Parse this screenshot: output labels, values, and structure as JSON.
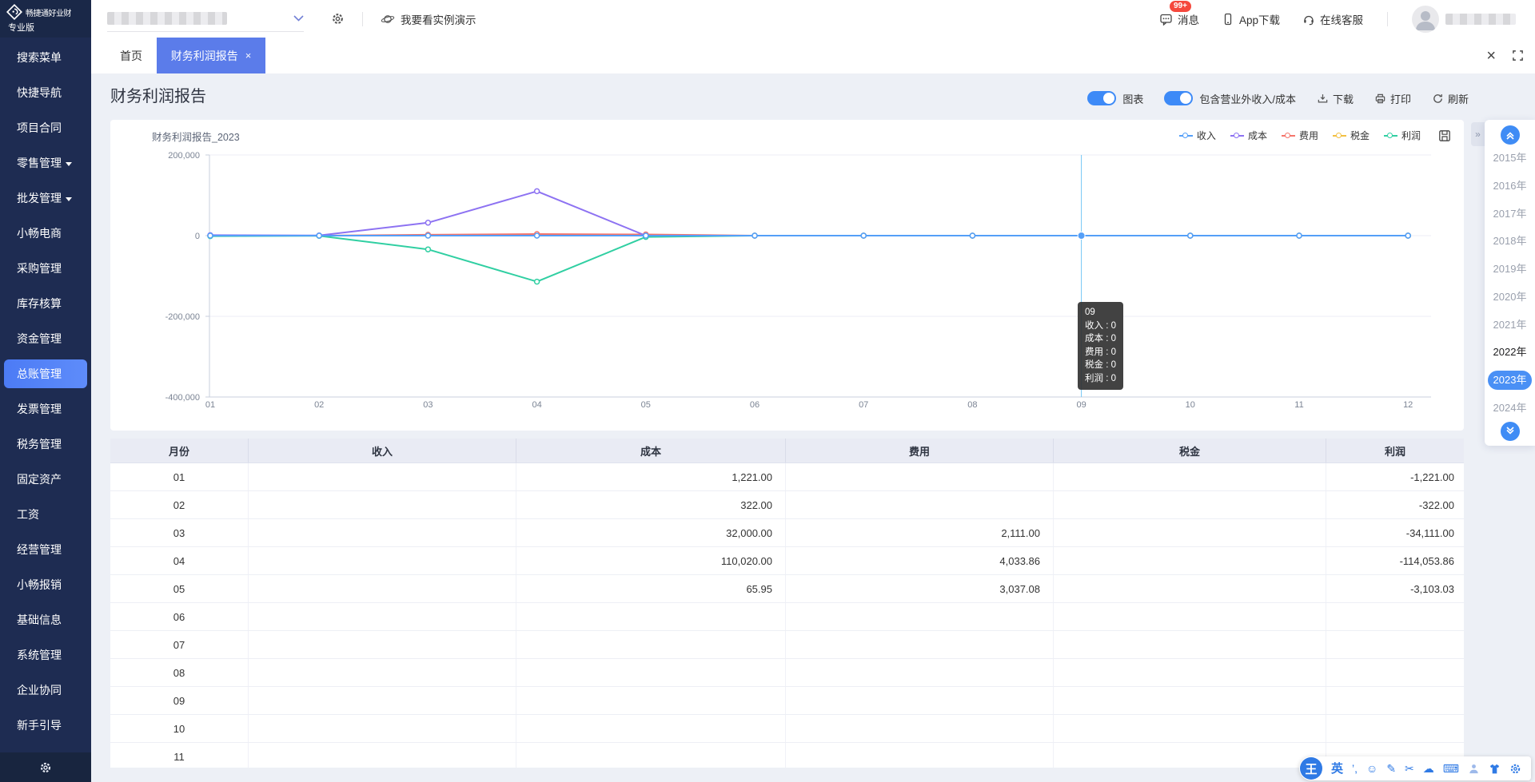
{
  "brand": {
    "name": "畅捷通好业财",
    "edition": "专业版"
  },
  "sidebar": {
    "items": [
      {
        "label": "搜索菜单"
      },
      {
        "label": "快捷导航"
      },
      {
        "label": "项目合同"
      },
      {
        "label": "零售管理",
        "caret": true
      },
      {
        "label": "批发管理",
        "caret": true
      },
      {
        "label": "小畅电商"
      },
      {
        "label": "采购管理"
      },
      {
        "label": "库存核算"
      },
      {
        "label": "资金管理"
      },
      {
        "label": "总账管理",
        "active": true
      },
      {
        "label": "发票管理"
      },
      {
        "label": "税务管理"
      },
      {
        "label": "固定资产"
      },
      {
        "label": "工资"
      },
      {
        "label": "经营管理"
      },
      {
        "label": "小畅报销"
      },
      {
        "label": "基础信息"
      },
      {
        "label": "系统管理"
      },
      {
        "label": "企业协同"
      },
      {
        "label": "新手引导"
      }
    ]
  },
  "topbar": {
    "demo_text": "我要看实例演示",
    "messages_label": "消息",
    "badge": "99+",
    "app_download": "App下载",
    "support": "在线客服"
  },
  "tabs": {
    "home": "首页",
    "active": "财务利润报告"
  },
  "glyphs": {
    "close": "×",
    "window_close": "×",
    "collapse": "»"
  },
  "page": {
    "title": "财务利润报告",
    "toggles": [
      {
        "label": "图表",
        "on": true
      },
      {
        "label": "包含营业外收入/成本",
        "on": true
      }
    ],
    "actions": [
      "下载",
      "打印",
      "刷新"
    ]
  },
  "chart_data": {
    "type": "line",
    "title": "财务利润报告_2023",
    "categories": [
      "01",
      "02",
      "03",
      "04",
      "05",
      "06",
      "07",
      "08",
      "09",
      "10",
      "11",
      "12"
    ],
    "series": [
      {
        "name": "收入",
        "color": "#549ff8",
        "values": [
          0,
          0,
          0,
          0,
          0,
          0,
          0,
          0,
          0,
          0,
          0,
          0
        ]
      },
      {
        "name": "成本",
        "color": "#8d72f2",
        "values": [
          1221,
          322,
          32000,
          110020,
          65.95,
          0,
          0,
          0,
          0,
          0,
          0,
          0
        ]
      },
      {
        "name": "费用",
        "color": "#f5756c",
        "values": [
          0,
          0,
          2111,
          4033.86,
          3037.08,
          0,
          0,
          0,
          0,
          0,
          0,
          0
        ]
      },
      {
        "name": "税金",
        "color": "#f2c043",
        "values": [
          0,
          0,
          0,
          0,
          0,
          0,
          0,
          0,
          0,
          0,
          0,
          0
        ]
      },
      {
        "name": "利润",
        "color": "#30cfa2",
        "values": [
          -1221,
          -322,
          -34111,
          -114053.86,
          -3103.03,
          0,
          0,
          0,
          0,
          0,
          0,
          0
        ]
      }
    ],
    "ylim": [
      -400000,
      200000
    ],
    "yticks": [
      200000,
      0,
      -200000,
      -400000
    ],
    "grid": true,
    "legend_position": "top-right",
    "highlight": {
      "series_index": 0,
      "point_index": 8
    },
    "crosshair_index": 8
  },
  "tooltip": {
    "title": "09",
    "separator": " : ",
    "rows": [
      {
        "name": "收入",
        "value": "0"
      },
      {
        "name": "成本",
        "value": "0"
      },
      {
        "name": "费用",
        "value": "0"
      },
      {
        "name": "税金",
        "value": "0"
      },
      {
        "name": "利润",
        "value": "0"
      }
    ]
  },
  "table": {
    "headers": [
      "月份",
      "收入",
      "成本",
      "费用",
      "税金",
      "利润"
    ],
    "rows": [
      [
        "01",
        "",
        "1,221.00",
        "",
        "",
        "-1,221.00"
      ],
      [
        "02",
        "",
        "322.00",
        "",
        "",
        "-322.00"
      ],
      [
        "03",
        "",
        "32,000.00",
        "2,111.00",
        "",
        "-34,111.00"
      ],
      [
        "04",
        "",
        "110,020.00",
        "4,033.86",
        "",
        "-114,053.86"
      ],
      [
        "05",
        "",
        "65.95",
        "3,037.08",
        "",
        "-3,103.03"
      ],
      [
        "06",
        "",
        "",
        "",
        "",
        ""
      ],
      [
        "07",
        "",
        "",
        "",
        "",
        ""
      ],
      [
        "08",
        "",
        "",
        "",
        "",
        ""
      ],
      [
        "09",
        "",
        "",
        "",
        "",
        ""
      ],
      [
        "10",
        "",
        "",
        "",
        "",
        ""
      ],
      [
        "11",
        "",
        "",
        "",
        "",
        ""
      ]
    ]
  },
  "year_panel": {
    "years": [
      {
        "label": "2015年",
        "state": "muted"
      },
      {
        "label": "2016年",
        "state": "muted"
      },
      {
        "label": "2017年",
        "state": "muted"
      },
      {
        "label": "2018年",
        "state": "muted"
      },
      {
        "label": "2019年",
        "state": "muted"
      },
      {
        "label": "2020年",
        "state": "muted"
      },
      {
        "label": "2021年",
        "state": "muted"
      },
      {
        "label": "2022年",
        "state": "normal"
      },
      {
        "label": "2023年",
        "state": "active"
      },
      {
        "label": "2024年",
        "state": "muted"
      }
    ]
  },
  "ime": {
    "logo": "王",
    "lang": "英",
    "punct": "’,"
  }
}
